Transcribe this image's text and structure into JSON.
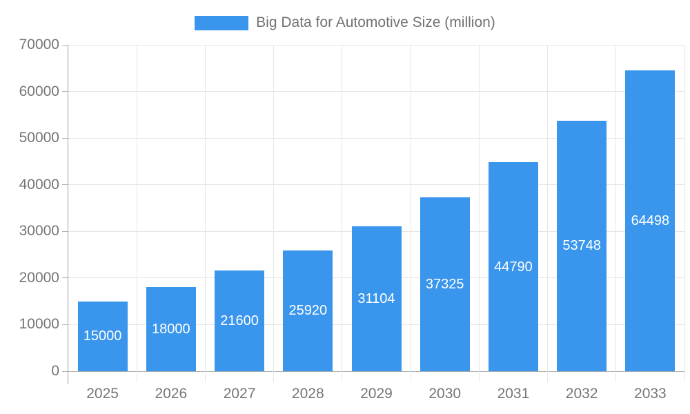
{
  "legend": {
    "title": "Big Data for Automotive Size (million)"
  },
  "chart_data": {
    "type": "bar",
    "title": "Big Data for Automotive Size (million)",
    "categories": [
      "2025",
      "2026",
      "2027",
      "2028",
      "2029",
      "2030",
      "2031",
      "2032",
      "2033"
    ],
    "values": [
      15000,
      18000,
      21600,
      25920,
      31104,
      37325,
      44790,
      53748,
      64498
    ],
    "xlabel": "",
    "ylabel": "",
    "ylim": [
      0,
      70000
    ],
    "ytick_interval": 10000,
    "ytick_labels": [
      "0",
      "10000",
      "20000",
      "30000",
      "40000",
      "50000",
      "60000",
      "70000"
    ],
    "grid": true,
    "legend_position": "top-center",
    "value_label_position": "inside-center",
    "colors": {
      "bar": "#3A96EC",
      "grid": "#E6E6E6",
      "axis": "#9E9E9E",
      "baseline": "#ACACAC",
      "tick_mark": "#B3B3B3",
      "tick_text": "#757575",
      "value_label": "#FFFFFF",
      "background": "#FFFFFF"
    }
  }
}
